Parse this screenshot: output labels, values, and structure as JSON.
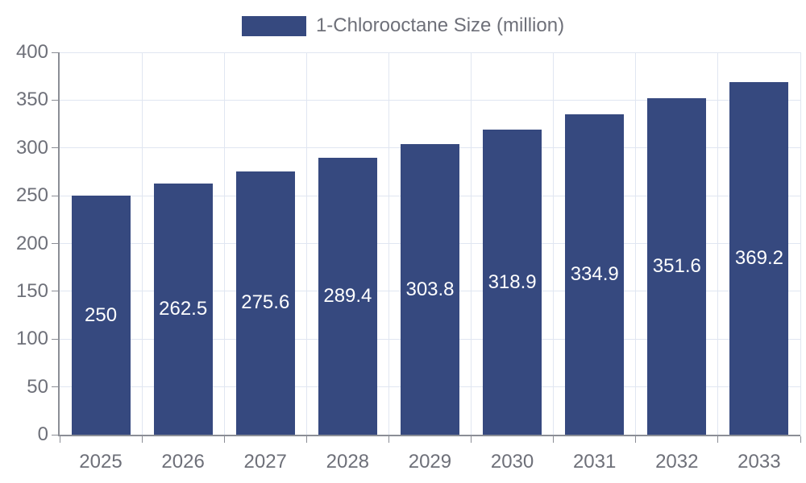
{
  "chart_data": {
    "type": "bar",
    "legend": "1-Chlorooctane Size (million)",
    "categories": [
      "2025",
      "2026",
      "2027",
      "2028",
      "2029",
      "2030",
      "2031",
      "2032",
      "2033"
    ],
    "series": [
      {
        "name": "1-Chlorooctane Size (million)",
        "values": [
          250,
          262.5,
          275.6,
          289.4,
          303.8,
          318.9,
          334.9,
          351.6,
          369.2
        ]
      }
    ],
    "value_labels": [
      "250",
      "262.5",
      "275.6",
      "289.4",
      "303.8",
      "318.9",
      "334.9",
      "351.6",
      "369.2"
    ],
    "xlabel": "",
    "ylabel": "",
    "ylim": [
      0,
      400
    ],
    "y_ticks": [
      0,
      50,
      100,
      150,
      200,
      250,
      300,
      350,
      400
    ],
    "grid": true,
    "legend_position": "top-center",
    "colors": {
      "bar": "#36497f",
      "axis_label": "#6e7079",
      "grid_line": "#e0e6f1",
      "axis_line": "#8b8e96",
      "value_label": "#ffffff",
      "background": "#ffffff"
    }
  }
}
